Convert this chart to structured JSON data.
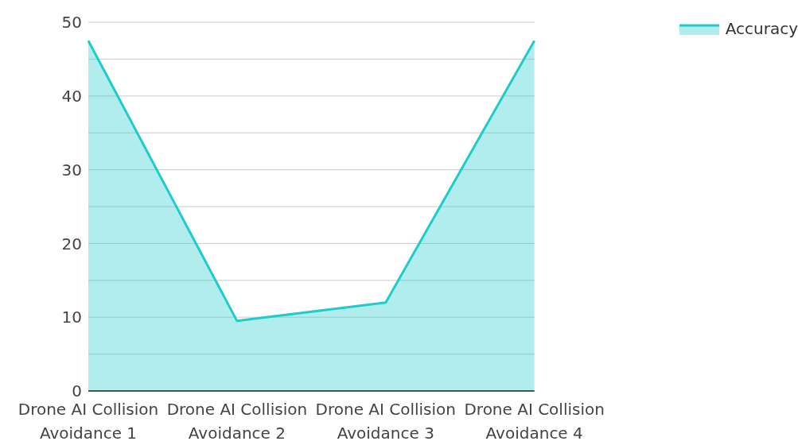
{
  "chart_data": {
    "type": "area",
    "categories": [
      "Drone AI Collision Avoidance 1",
      "Drone AI Collision Avoidance 2",
      "Drone AI Collision Avoidance 3",
      "Drone AI Collision Avoidance 4"
    ],
    "series": [
      {
        "name": "Accuracy",
        "color": "#1fcbcb",
        "values": [
          47.5,
          9.5,
          12,
          47.5
        ]
      }
    ],
    "ylim": [
      0,
      50
    ],
    "yticks": [
      0,
      {
        "value": 5,
        "label": null
      },
      10,
      {
        "value": 15,
        "label": null
      },
      20,
      {
        "value": 25,
        "label": null
      },
      30,
      {
        "value": 35,
        "label": null
      },
      40,
      {
        "value": 45,
        "label": null
      },
      50
    ],
    "grid": "y",
    "legend": "top right"
  }
}
